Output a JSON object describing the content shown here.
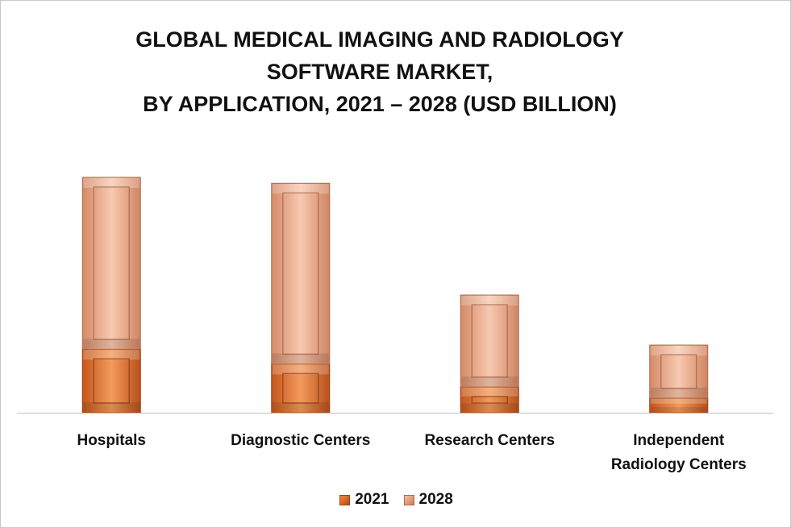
{
  "chart_data": {
    "type": "bar",
    "stacked": true,
    "title": [
      "GLOBAL MEDICAL IMAGING AND RADIOLOGY",
      "SOFTWARE MARKET,",
      "BY APPLICATION, 2021 – 2028 (USD BILLION)"
    ],
    "categories": [
      [
        "Hospitals"
      ],
      [
        "Diagnostic Centers"
      ],
      [
        "Research Centers"
      ],
      [
        "Independent",
        "Radiology Centers"
      ]
    ],
    "series": [
      {
        "name": "2021",
        "values": [
          1.08,
          0.83,
          0.44,
          0.25
        ]
      },
      {
        "name": "2028",
        "values": [
          2.92,
          3.07,
          1.56,
          0.9
        ]
      }
    ],
    "ylim": [
      0,
      4.0
    ],
    "grid": false,
    "legend_position": "bottom",
    "colors": {
      "2021_light": "#f39a5c",
      "2021_dark": "#b8501a",
      "2028_light": "#f8c9b0",
      "2028_dark": "#d48a68"
    }
  }
}
